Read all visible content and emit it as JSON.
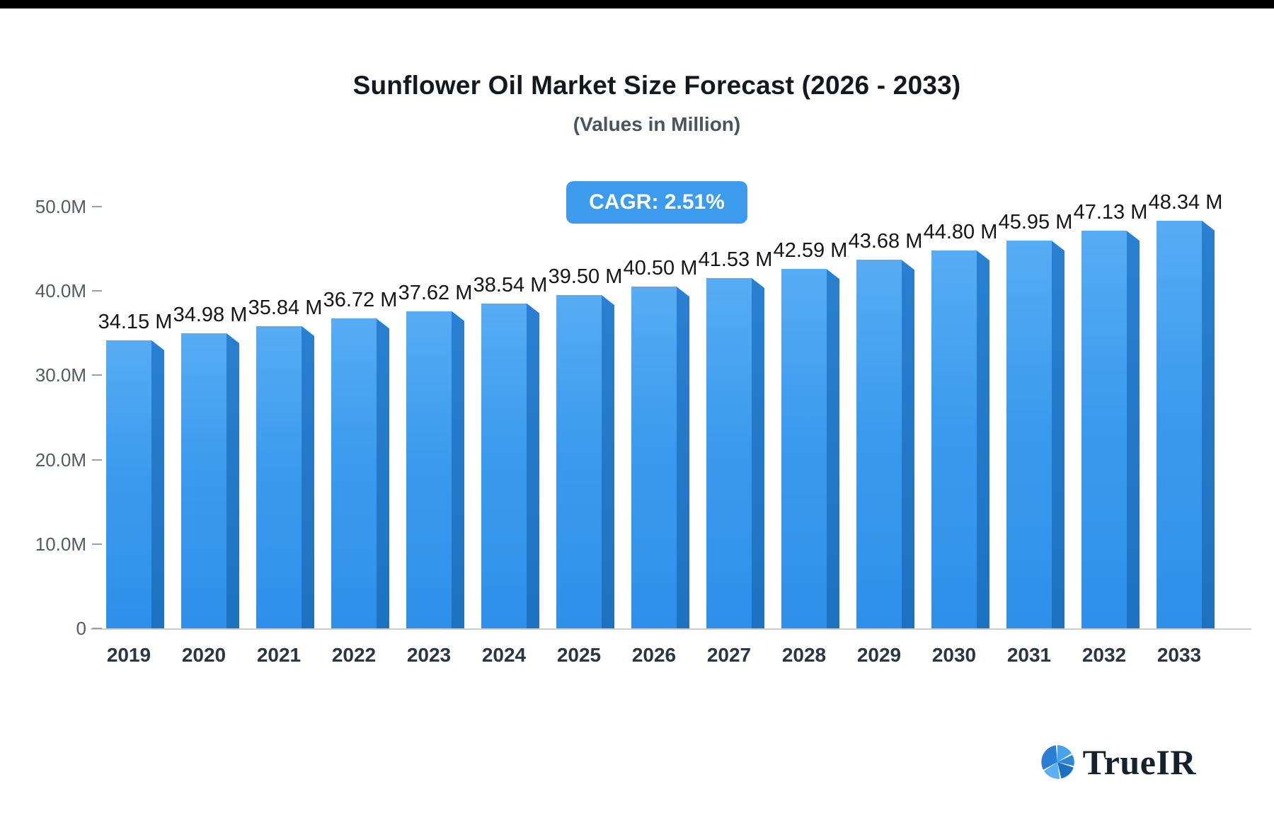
{
  "title": "Sunflower Oil Market Size Forecast (2026 - 2033)",
  "subtitle": "(Values in Million)",
  "cagr_badge": {
    "label": "CAGR: 2.51%",
    "background_color": "#3d9bee",
    "text_color": "#ffffff"
  },
  "chart_data": {
    "type": "bar",
    "title": "Sunflower Oil Market Size Forecast (2026 - 2033)",
    "subtitle": "(Values in Million)",
    "annotation": "CAGR: 2.51%",
    "categories": [
      "2019",
      "2020",
      "2021",
      "2022",
      "2023",
      "2024",
      "2025",
      "2026",
      "2027",
      "2028",
      "2029",
      "2030",
      "2031",
      "2032",
      "2033"
    ],
    "values": [
      34.15,
      34.98,
      35.84,
      36.72,
      37.62,
      38.54,
      39.5,
      40.5,
      41.53,
      42.59,
      43.68,
      44.8,
      45.95,
      47.13,
      48.34
    ],
    "value_labels": [
      "34.15 M",
      "34.98 M",
      "35.84 M",
      "36.72 M",
      "37.62 M",
      "38.54 M",
      "39.50 M",
      "40.50 M",
      "41.53 M",
      "42.59 M",
      "43.68 M",
      "44.80 M",
      "45.95 M",
      "47.13 M",
      "48.34 M"
    ],
    "xlabel": "",
    "ylabel": "",
    "ylim": [
      0,
      50
    ],
    "yticks": [
      {
        "value": 0,
        "label": "0"
      },
      {
        "value": 10,
        "label": "10.0M"
      },
      {
        "value": 20,
        "label": "20.0M"
      },
      {
        "value": 30,
        "label": "30.0M"
      },
      {
        "value": 40,
        "label": "40.0M"
      },
      {
        "value": 50,
        "label": "50.0M"
      }
    ],
    "grid": false,
    "legend": false,
    "bar_front_color_top": "#58acf3",
    "bar_front_color_bottom": "#2e90e9",
    "bar_side_color": "#1e72c2"
  },
  "logo": {
    "text": "TrueIR",
    "icon": "pie-chart-icon",
    "icon_color": "#2f86d6",
    "text_color": "#17212b"
  }
}
